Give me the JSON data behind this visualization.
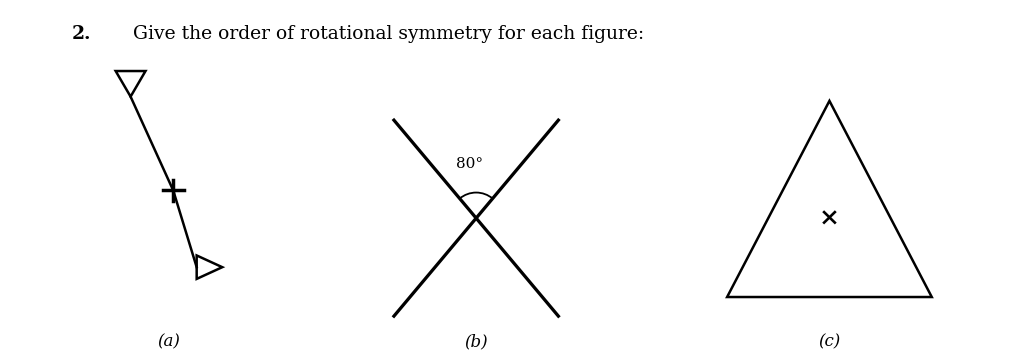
{
  "title_num": "2.",
  "title_text": "Give the order of rotational symmetry for each figure:",
  "title_fontsize": 13.5,
  "bg_color": "#ffffff",
  "label_a": "(a)",
  "label_b": "(b)",
  "label_c": "(c)",
  "label_fontsize": 12,
  "angle_label": "80°",
  "fig_width": 10.24,
  "fig_height": 3.64,
  "line_width": 1.8
}
